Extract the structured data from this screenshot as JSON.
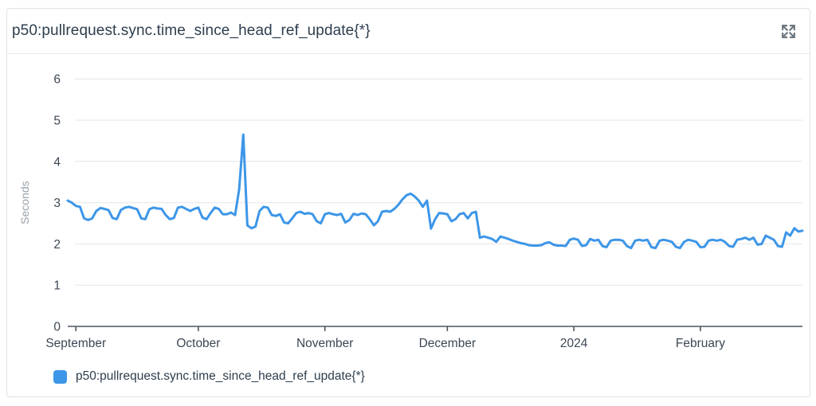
{
  "widget": {
    "title": "p50:pullrequest.sync.time_since_head_ref_update{*}",
    "expand_icon": "expand-icon"
  },
  "legend": {
    "swatch_color": "#3d96e8",
    "label": "p50:pullrequest.sync.time_since_head_ref_update{*}"
  },
  "colors": {
    "line": "#3d96e8",
    "grid": "#ededef",
    "axis_line": "#4b5562",
    "tick_text": "#3c4754",
    "muted_text": "#9ba3ab",
    "title_text": "#2d3e4e",
    "border": "#dee3e8",
    "icon": "#67737e"
  },
  "chart_data": {
    "type": "line",
    "title": "p50:pullrequest.sync.time_since_head_ref_update{*}",
    "xlabel": "",
    "ylabel": "Seconds",
    "ylim": [
      0,
      6
    ],
    "y_ticks": [
      0,
      1,
      2,
      3,
      4,
      5,
      6
    ],
    "grid": "horizontal",
    "legend_position": "bottom-left",
    "x_unit": "days_from_sep1_2023",
    "x_domain": [
      -2,
      178
    ],
    "x_tick_days": [
      0,
      30,
      61,
      91,
      122,
      153
    ],
    "x_tick_labels": [
      "September",
      "October",
      "November",
      "December",
      "2024",
      "February"
    ],
    "series": [
      {
        "name": "p50:pullrequest.sync.time_since_head_ref_update{*}",
        "color": "#3d96e8",
        "x_start_day": -2,
        "x_step_days": 1,
        "values": [
          3.05,
          3.0,
          2.92,
          2.9,
          2.62,
          2.58,
          2.62,
          2.8,
          2.87,
          2.85,
          2.82,
          2.63,
          2.6,
          2.82,
          2.88,
          2.9,
          2.87,
          2.84,
          2.62,
          2.6,
          2.84,
          2.88,
          2.86,
          2.85,
          2.7,
          2.6,
          2.63,
          2.88,
          2.9,
          2.85,
          2.8,
          2.85,
          2.88,
          2.64,
          2.6,
          2.75,
          2.88,
          2.85,
          2.72,
          2.72,
          2.76,
          2.7,
          3.32,
          4.65,
          2.45,
          2.38,
          2.42,
          2.8,
          2.9,
          2.88,
          2.7,
          2.68,
          2.72,
          2.52,
          2.5,
          2.62,
          2.75,
          2.78,
          2.73,
          2.75,
          2.72,
          2.55,
          2.5,
          2.72,
          2.75,
          2.72,
          2.7,
          2.73,
          2.52,
          2.58,
          2.73,
          2.7,
          2.74,
          2.72,
          2.6,
          2.45,
          2.55,
          2.78,
          2.8,
          2.78,
          2.85,
          2.95,
          3.08,
          3.18,
          3.22,
          3.15,
          3.05,
          2.9,
          3.05,
          2.37,
          2.6,
          2.75,
          2.74,
          2.72,
          2.55,
          2.6,
          2.72,
          2.75,
          2.62,
          2.75,
          2.78,
          2.15,
          2.18,
          2.15,
          2.12,
          2.05,
          2.18,
          2.15,
          2.12,
          2.08,
          2.05,
          2.02,
          2.0,
          1.97,
          1.96,
          1.96,
          1.97,
          2.02,
          2.04,
          1.98,
          1.96,
          1.96,
          1.95,
          2.1,
          2.13,
          2.1,
          1.95,
          1.97,
          2.12,
          2.08,
          2.1,
          1.95,
          1.92,
          2.08,
          2.1,
          2.1,
          2.08,
          1.95,
          1.9,
          2.08,
          2.1,
          2.08,
          2.1,
          1.92,
          1.9,
          2.08,
          2.1,
          2.08,
          2.05,
          1.93,
          1.9,
          2.05,
          2.1,
          2.08,
          2.05,
          1.92,
          1.93,
          2.08,
          2.1,
          2.08,
          2.1,
          2.05,
          1.95,
          1.93,
          2.1,
          2.12,
          2.15,
          2.1,
          2.15,
          1.98,
          2.0,
          2.2,
          2.15,
          2.1,
          1.95,
          1.93,
          2.28,
          2.2,
          2.38,
          2.3,
          2.32
        ]
      }
    ]
  }
}
